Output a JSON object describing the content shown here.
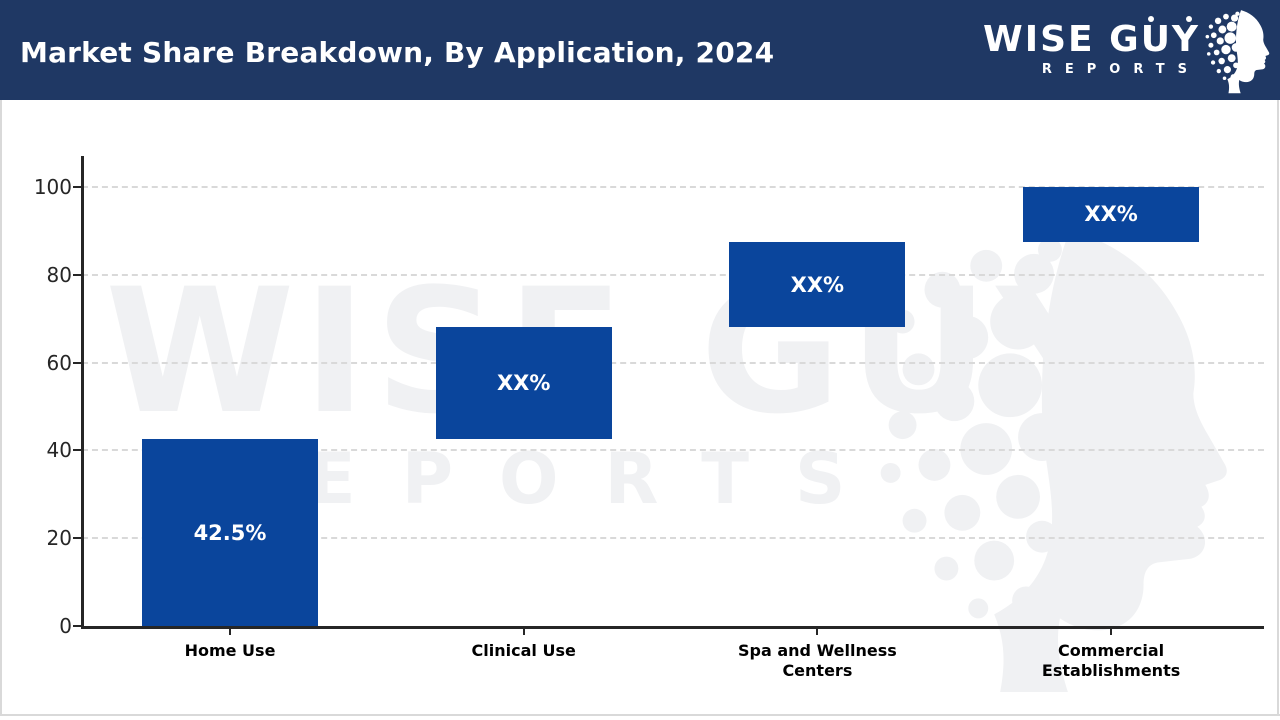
{
  "header": {
    "title": "Market Share Breakdown, By Application, 2024",
    "bg_color": "#1f3864",
    "logo": {
      "line1": "WISE GUY",
      "line2": "REPORTS"
    }
  },
  "watermark": {
    "line1": "WISE GUY",
    "line2": "REPORTS"
  },
  "chart_data": {
    "type": "bar",
    "subtype": "waterfall",
    "title": "Market Share Breakdown, By Application, 2024",
    "xlabel": "",
    "ylabel": "",
    "ylim": [
      0,
      100
    ],
    "yticks": [
      0,
      20,
      40,
      60,
      80,
      100
    ],
    "grid": "horizontal dashed",
    "legend": "none",
    "bar_color": "#0a459c",
    "axis_color": "#262626",
    "grid_color": "#d9d9d9",
    "categories": [
      "Home Use",
      "Clinical Use",
      "Spa and Wellness Centers",
      "Commercial Establishments"
    ],
    "segments": [
      {
        "category": "Home Use",
        "from": 0,
        "to": 42.5,
        "label": "42.5%"
      },
      {
        "category": "Clinical Use",
        "from": 42.5,
        "to": 68,
        "label": "XX%"
      },
      {
        "category": "Spa and Wellness Centers",
        "from": 68,
        "to": 87.5,
        "label": "XX%"
      },
      {
        "category": "Commercial Establishments",
        "from": 87.5,
        "to": 100,
        "label": "XX%"
      }
    ]
  }
}
